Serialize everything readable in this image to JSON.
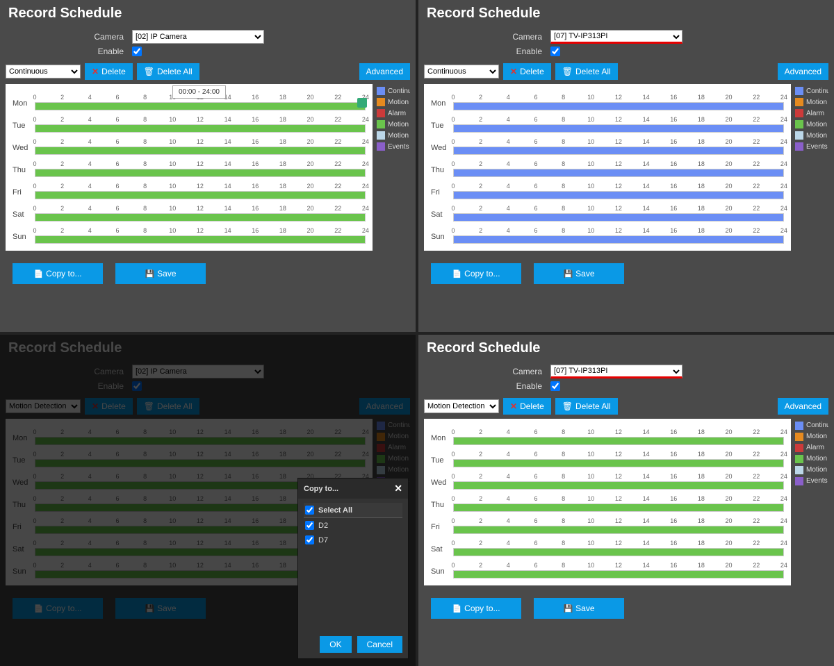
{
  "title": "Record Schedule",
  "labels": {
    "camera": "Camera",
    "enable": "Enable",
    "delete": "Delete",
    "delete_all": "Delete All",
    "advanced": "Advanced",
    "copy_to": "Copy to...",
    "save": "Save",
    "ok": "OK",
    "cancel": "Cancel",
    "select_all": "Select All"
  },
  "type_options": {
    "continuous": "Continuous",
    "motion_detection": "Motion Detection"
  },
  "days": [
    "Mon",
    "Tue",
    "Wed",
    "Thu",
    "Fri",
    "Sat",
    "Sun"
  ],
  "hours": [
    0,
    2,
    4,
    6,
    8,
    10,
    12,
    14,
    16,
    18,
    20,
    22,
    24
  ],
  "tooltip": "00:00 - 24:00",
  "bar_range": {
    "start": 0,
    "end": 24
  },
  "colors": {
    "continuous": "#6b8ef5",
    "motion_green": "#6ac44c",
    "motion_orange": "#e68a1f",
    "alarm": "#cc3a3a",
    "motion_alarm": "#bcd7e8",
    "events": "#8a5fc9",
    "panel_bg": "#4a4a4a",
    "chart_bg": "#ffffff",
    "btn_blue": "#0a99e6",
    "redline": "#e60000"
  },
  "legend": [
    {
      "label": "Continuous",
      "color": "#6b8ef5"
    },
    {
      "label": "Motion",
      "color": "#e68a1f"
    },
    {
      "label": "Alarm",
      "color": "#cc3a3a"
    },
    {
      "label": "Motion",
      "color": "#6ac44c"
    },
    {
      "label": "Motion",
      "color": "#bcd7e8"
    },
    {
      "label": "Events",
      "color": "#8a5fc9"
    }
  ],
  "panels": {
    "p1": {
      "camera": "[02] IP Camera",
      "enable": true,
      "type": "Continuous",
      "bar_color": "#6ac44c",
      "show_tooltip": true,
      "redline": false,
      "dim": false
    },
    "p2": {
      "camera": "[07] TV-IP313PI",
      "enable": true,
      "type": "Continuous",
      "bar_color": "#6b8ef5",
      "show_tooltip": false,
      "redline": true,
      "dim": false
    },
    "p3": {
      "camera": "[02] IP Camera",
      "enable": true,
      "type": "Motion Detection",
      "bar_color": "#6ac44c",
      "show_tooltip": false,
      "redline": false,
      "dim": true
    },
    "p4": {
      "camera": "[07] TV-IP313PI",
      "enable": true,
      "type": "Motion Detection",
      "bar_color": "#6ac44c",
      "show_tooltip": false,
      "redline": true,
      "dim": false
    }
  },
  "dialog": {
    "title": "Copy to...",
    "items": [
      {
        "label": "D2",
        "checked": true
      },
      {
        "label": "D7",
        "checked": true
      }
    ],
    "select_all_checked": true
  }
}
